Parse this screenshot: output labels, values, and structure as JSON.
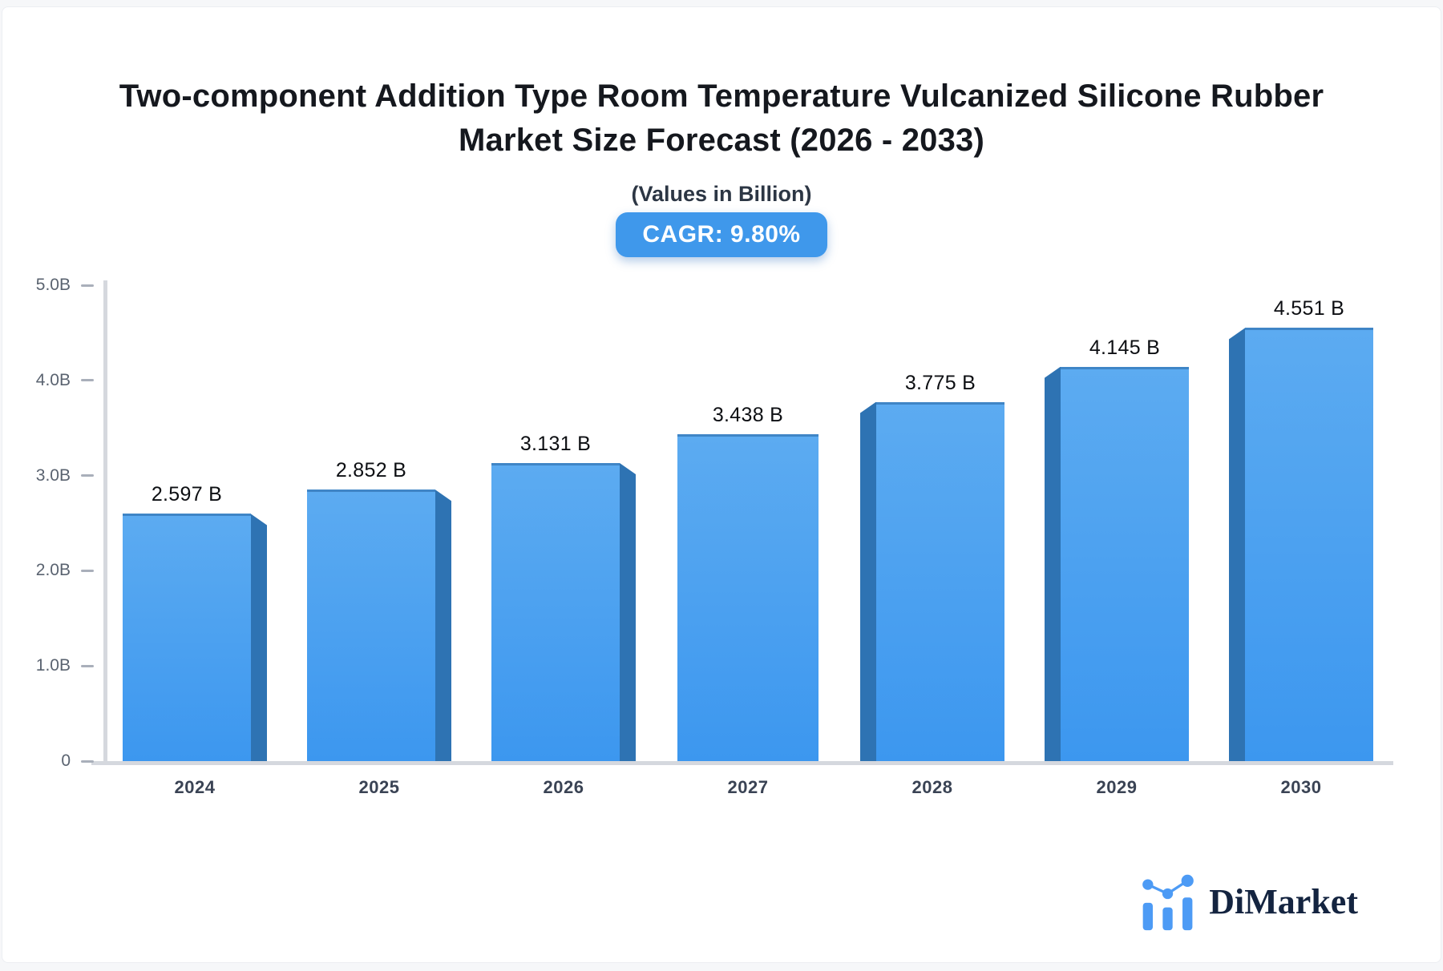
{
  "title": {
    "line1": "Two-component Addition Type Room Temperature Vulcanized Silicone Rubber",
    "line2": "Market Size Forecast (2026 - 2033)"
  },
  "subtitle": "(Values in Billion)",
  "badge": {
    "label": "CAGR: 9.80%"
  },
  "chart_data": {
    "type": "bar",
    "title": "Two-component Addition Type Room Temperature Vulcanized Silicone Rubber Market Size Forecast (2026 - 2033)",
    "subtitle": "(Values in Billion)",
    "cagr": "9.80%",
    "unit": "Billion",
    "categories": [
      "2024",
      "2025",
      "2026",
      "2027",
      "2028",
      "2029",
      "2030"
    ],
    "values": [
      2.597,
      2.852,
      3.131,
      3.438,
      3.775,
      4.145,
      4.551
    ],
    "value_labels": [
      "2.597 B",
      "2.852 B",
      "3.131 B",
      "3.438 B",
      "3.775 B",
      "4.145 B",
      "4.551 B"
    ],
    "xlabel": "",
    "ylabel": "",
    "ylim": [
      0,
      5
    ],
    "yticks": [
      {
        "v": 0,
        "label": "0"
      },
      {
        "v": 1,
        "label": "1.0B"
      },
      {
        "v": 2,
        "label": "2.0B"
      },
      {
        "v": 3,
        "label": "3.0B"
      },
      {
        "v": 4,
        "label": "4.0B"
      },
      {
        "v": 5,
        "label": "5.0B"
      }
    ],
    "grid": false,
    "legend": "none"
  },
  "logo": {
    "text": "DiMarket"
  },
  "colors": {
    "bar_face_top": "#5cabf1",
    "bar_face_bottom": "#3c97ef",
    "bar_side": "#2e73b3",
    "bar_top_edge": "#3f85c6",
    "badge_bg": "#3f98eb",
    "badge_text": "#ffffff",
    "axis_line": "#d5d8de",
    "tick_label": "#5a6370",
    "x_label": "#3a4354",
    "value_label": "#0d0f13",
    "title_text": "#15181e",
    "logo_blue": "#4d9bf5",
    "logo_text": "#142440"
  }
}
